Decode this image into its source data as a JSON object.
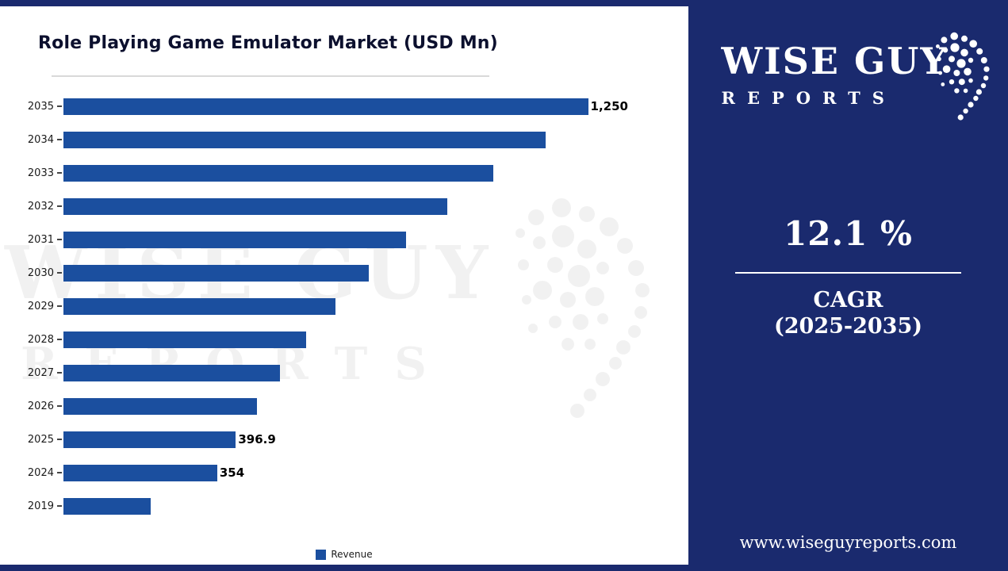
{
  "chart_data": {
    "type": "bar",
    "orientation": "horizontal",
    "title": "Role Playing Game Emulator Market (USD Mn)",
    "unit": "USD Mn",
    "categories": [
      "2035",
      "2034",
      "2033",
      "2032",
      "2031",
      "2030",
      "2029",
      "2028",
      "2027",
      "2026",
      "2025",
      "2024",
      "2019"
    ],
    "values": [
      1250,
      1110,
      990,
      883,
      788,
      703,
      627,
      559,
      499,
      445,
      396.9,
      354,
      200
    ],
    "value_labels": {
      "2035": "1,250",
      "2025": "396.9",
      "2024": "354"
    },
    "xlim": [
      0,
      1300
    ],
    "grid": false,
    "bar_color": "#1b4f9f",
    "legend": {
      "label": "Revenue",
      "position": "bottom"
    }
  },
  "sidebar": {
    "logo": {
      "line1": "WISE GUY",
      "line2": "REPORTS"
    },
    "cagr_value": "12.1 %",
    "cagr_label": "CAGR",
    "cagr_range": "(2025-2035)",
    "website": "www.wiseguyreports.com",
    "bg_color": "#1a2a6e"
  },
  "watermark": {
    "line1": "WISE GUY",
    "line2": "REPORTS"
  }
}
